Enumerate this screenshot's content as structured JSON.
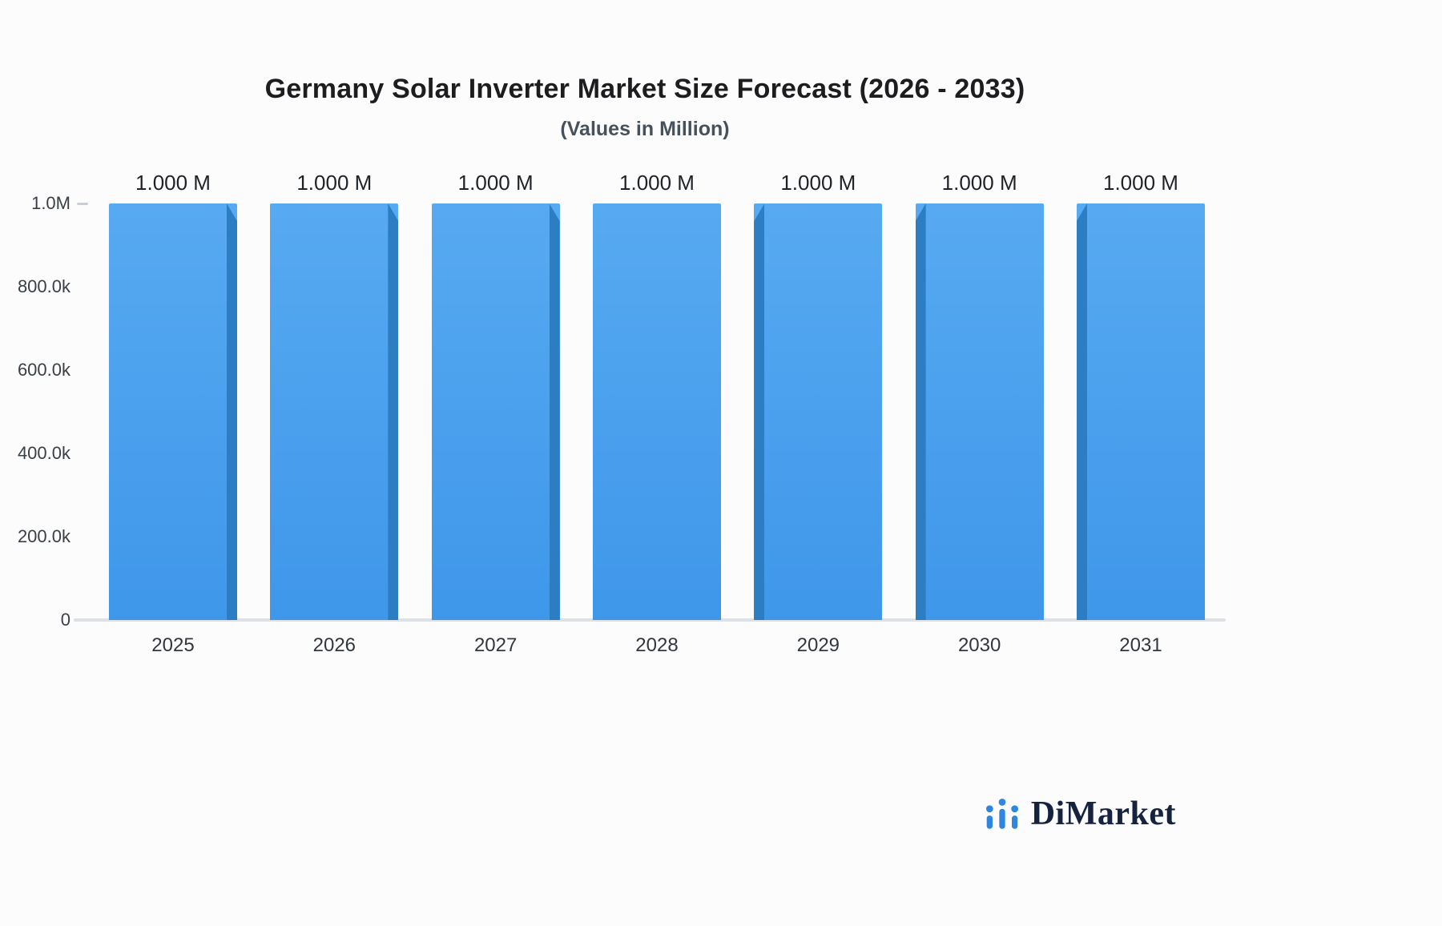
{
  "title": "Germany Solar Inverter Market Size Forecast (2026 - 2033)",
  "subtitle": "(Values in Million)",
  "chart_data": {
    "type": "bar",
    "categories": [
      "2025",
      "2026",
      "2027",
      "2028",
      "2029",
      "2030",
      "2031"
    ],
    "values": [
      1000000,
      1000000,
      1000000,
      1000000,
      1000000,
      1000000,
      1000000
    ],
    "value_labels": [
      "1.000 M",
      "1.000 M",
      "1.000 M",
      "1.000 M",
      "1.000 M",
      "1.000 M",
      "1.000 M"
    ],
    "title": "Germany Solar Inverter Market Size Forecast (2026 - 2033)",
    "subtitle": "(Values in Million)",
    "xlabel": "",
    "ylabel": "",
    "ylim": [
      0,
      1000000
    ],
    "yticks": [
      "0",
      "200.0k",
      "400.0k",
      "600.0k",
      "800.0k",
      "1.0M"
    ],
    "grid": false,
    "legend": "none",
    "bar_color_top": "#57aaf1",
    "bar_color_bottom": "#3f97ea",
    "bar_edge_color": "#2c7dc2"
  },
  "branding": {
    "logo_icon": "bar-chart-icon",
    "logo_text": "DiMarket",
    "logo_icon_color": "#2e86de",
    "logo_text_color": "#16233f"
  }
}
